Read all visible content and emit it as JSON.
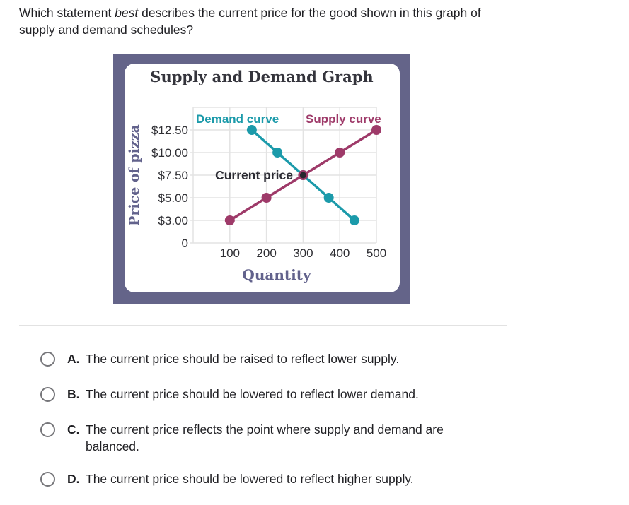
{
  "question": {
    "prefix": "Which statement ",
    "emphasis": "best",
    "suffix": " describes the current price for the good shown in this graph of supply and demand schedules?"
  },
  "chart_data": {
    "type": "line",
    "title": "Supply and Demand Graph",
    "xlabel": "Quantity",
    "ylabel": "Price of pizza",
    "xlim": [
      0,
      500
    ],
    "x_ticks": [
      100,
      200,
      300,
      400,
      500
    ],
    "y_categories": [
      "$12.50",
      "$10.00",
      "$7.50",
      "$5.00",
      "$3.00",
      "0"
    ],
    "grid": true,
    "legend_position": "top-inside",
    "series": [
      {
        "name": "Demand curve",
        "color": "#1b9aaa",
        "points": [
          [
            160,
            "$12.50"
          ],
          [
            230,
            "$10.00"
          ],
          [
            300,
            "$7.50"
          ],
          [
            370,
            "$5.00"
          ],
          [
            440,
            "$3.00"
          ]
        ]
      },
      {
        "name": "Supply curve",
        "color": "#9e3a69",
        "points": [
          [
            100,
            "$3.00"
          ],
          [
            200,
            "$5.00"
          ],
          [
            300,
            "$7.50"
          ],
          [
            400,
            "$10.00"
          ],
          [
            500,
            "$12.50"
          ]
        ]
      }
    ],
    "annotation": {
      "label": "Current price",
      "x": 300,
      "y": "$7.50",
      "marker_color": "#26262e"
    }
  },
  "colors": {
    "frame": "#646489",
    "gridline": "#e3e3e3",
    "demand": "#1b9aaa",
    "supply": "#9e3a69",
    "axis_text": "#62628c"
  },
  "options": [
    {
      "letter": "A.",
      "text": "The current price should be raised to reflect lower supply."
    },
    {
      "letter": "B.",
      "text": "The current price should be lowered to reflect lower demand."
    },
    {
      "letter": "C.",
      "text": "The current price reflects the point where supply and demand are balanced."
    },
    {
      "letter": "D.",
      "text": "The current price should be lowered to reflect higher supply."
    }
  ]
}
